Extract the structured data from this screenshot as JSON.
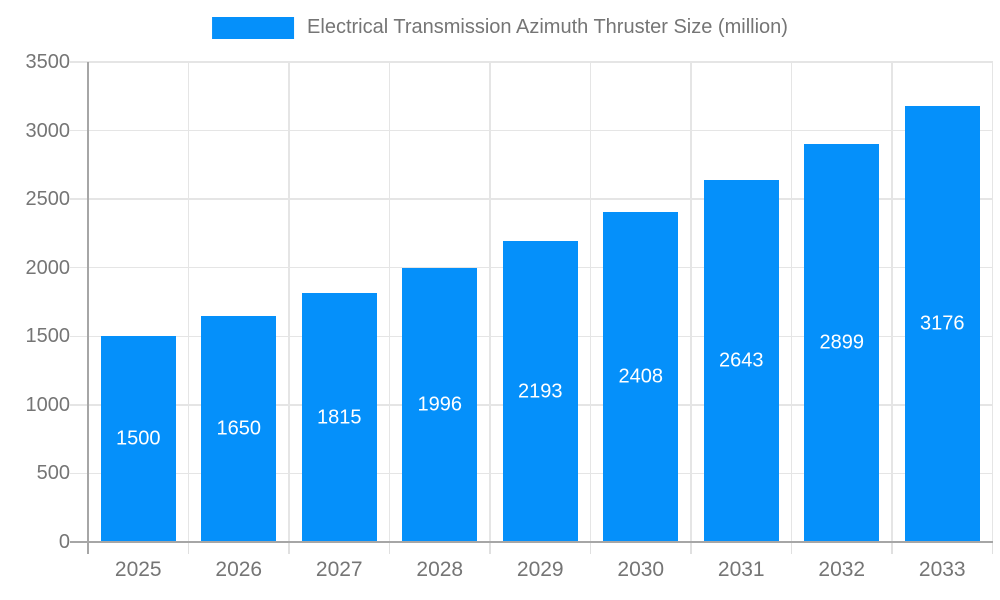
{
  "chart_data": {
    "type": "bar",
    "title": "Electrical Transmission Azimuth Thruster Size (million)",
    "categories": [
      "2025",
      "2026",
      "2027",
      "2028",
      "2029",
      "2030",
      "2031",
      "2032",
      "2033"
    ],
    "values": [
      1500,
      1650,
      1815,
      1996,
      2193,
      2408,
      2643,
      2899,
      3176
    ],
    "xlabel": "",
    "ylabel": "",
    "ylim": [
      0,
      3500
    ],
    "yticks": [
      0,
      500,
      1000,
      1500,
      2000,
      2500,
      3000,
      3500
    ],
    "grid": true,
    "legend_position": "top-center",
    "colors": {
      "bar": "#0590fa",
      "bar_value_label": "#ffffff",
      "axis_text": "#757575",
      "gridline": "#e5e5e5",
      "axis_line": "#a6a6a6",
      "background": "#ffffff"
    }
  }
}
